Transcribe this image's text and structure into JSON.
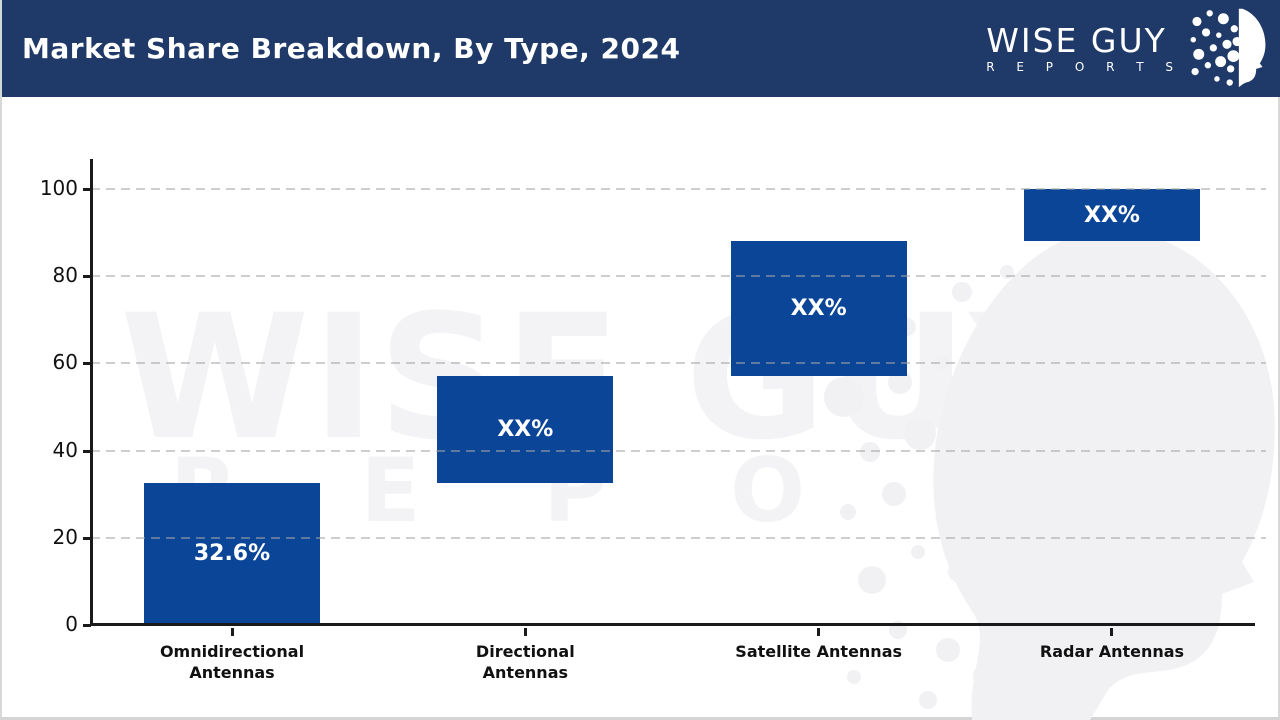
{
  "header": {
    "title": "Market Share Breakdown, By Type, 2024",
    "logo": {
      "name": "WISE GUY",
      "sub": "R E P O R T S"
    }
  },
  "watermark": {
    "name": "WISE GUY",
    "sub": "R E P O R T S"
  },
  "colors": {
    "header_bg": "#1f3a68",
    "title_text": "#ffffff",
    "bar": "#0b4598",
    "bar_label": "#ffffff",
    "axis": "#1a1a1a",
    "grid_dash": "#c9c9c9",
    "watermark": "#f3f3f5"
  },
  "chart_data": {
    "type": "bar",
    "variant": "waterfall",
    "title": "Market Share Breakdown, By Type, 2024",
    "xlabel": "",
    "ylabel": "",
    "ylim": [
      0,
      105
    ],
    "yticks": [
      0,
      20,
      40,
      60,
      80,
      100
    ],
    "grid": "horizontal-dashed-over-bars",
    "legend": "none",
    "categories": [
      "Omnidirectional Antennas",
      "Directional Antennas",
      "Satellite Antennas",
      "Radar Antennas"
    ],
    "category_label_lines": [
      [
        "Omnidirectional",
        "Antennas"
      ],
      [
        "Directional",
        "Antennas"
      ],
      [
        "Satellite Antennas"
      ],
      [
        "Radar Antennas"
      ]
    ],
    "segments": [
      {
        "category": "Omnidirectional Antennas",
        "start": 0.0,
        "end": 32.6,
        "value": 32.6,
        "label": "32.6%"
      },
      {
        "category": "Directional Antennas",
        "start": 32.6,
        "end": 57.0,
        "value": 24.4,
        "label": "XX%"
      },
      {
        "category": "Satellite Antennas",
        "start": 57.0,
        "end": 88.0,
        "value": 31.0,
        "label": "XX%"
      },
      {
        "category": "Radar Antennas",
        "start": 88.0,
        "end": 100.0,
        "value": 12.0,
        "label": "XX%"
      }
    ]
  }
}
